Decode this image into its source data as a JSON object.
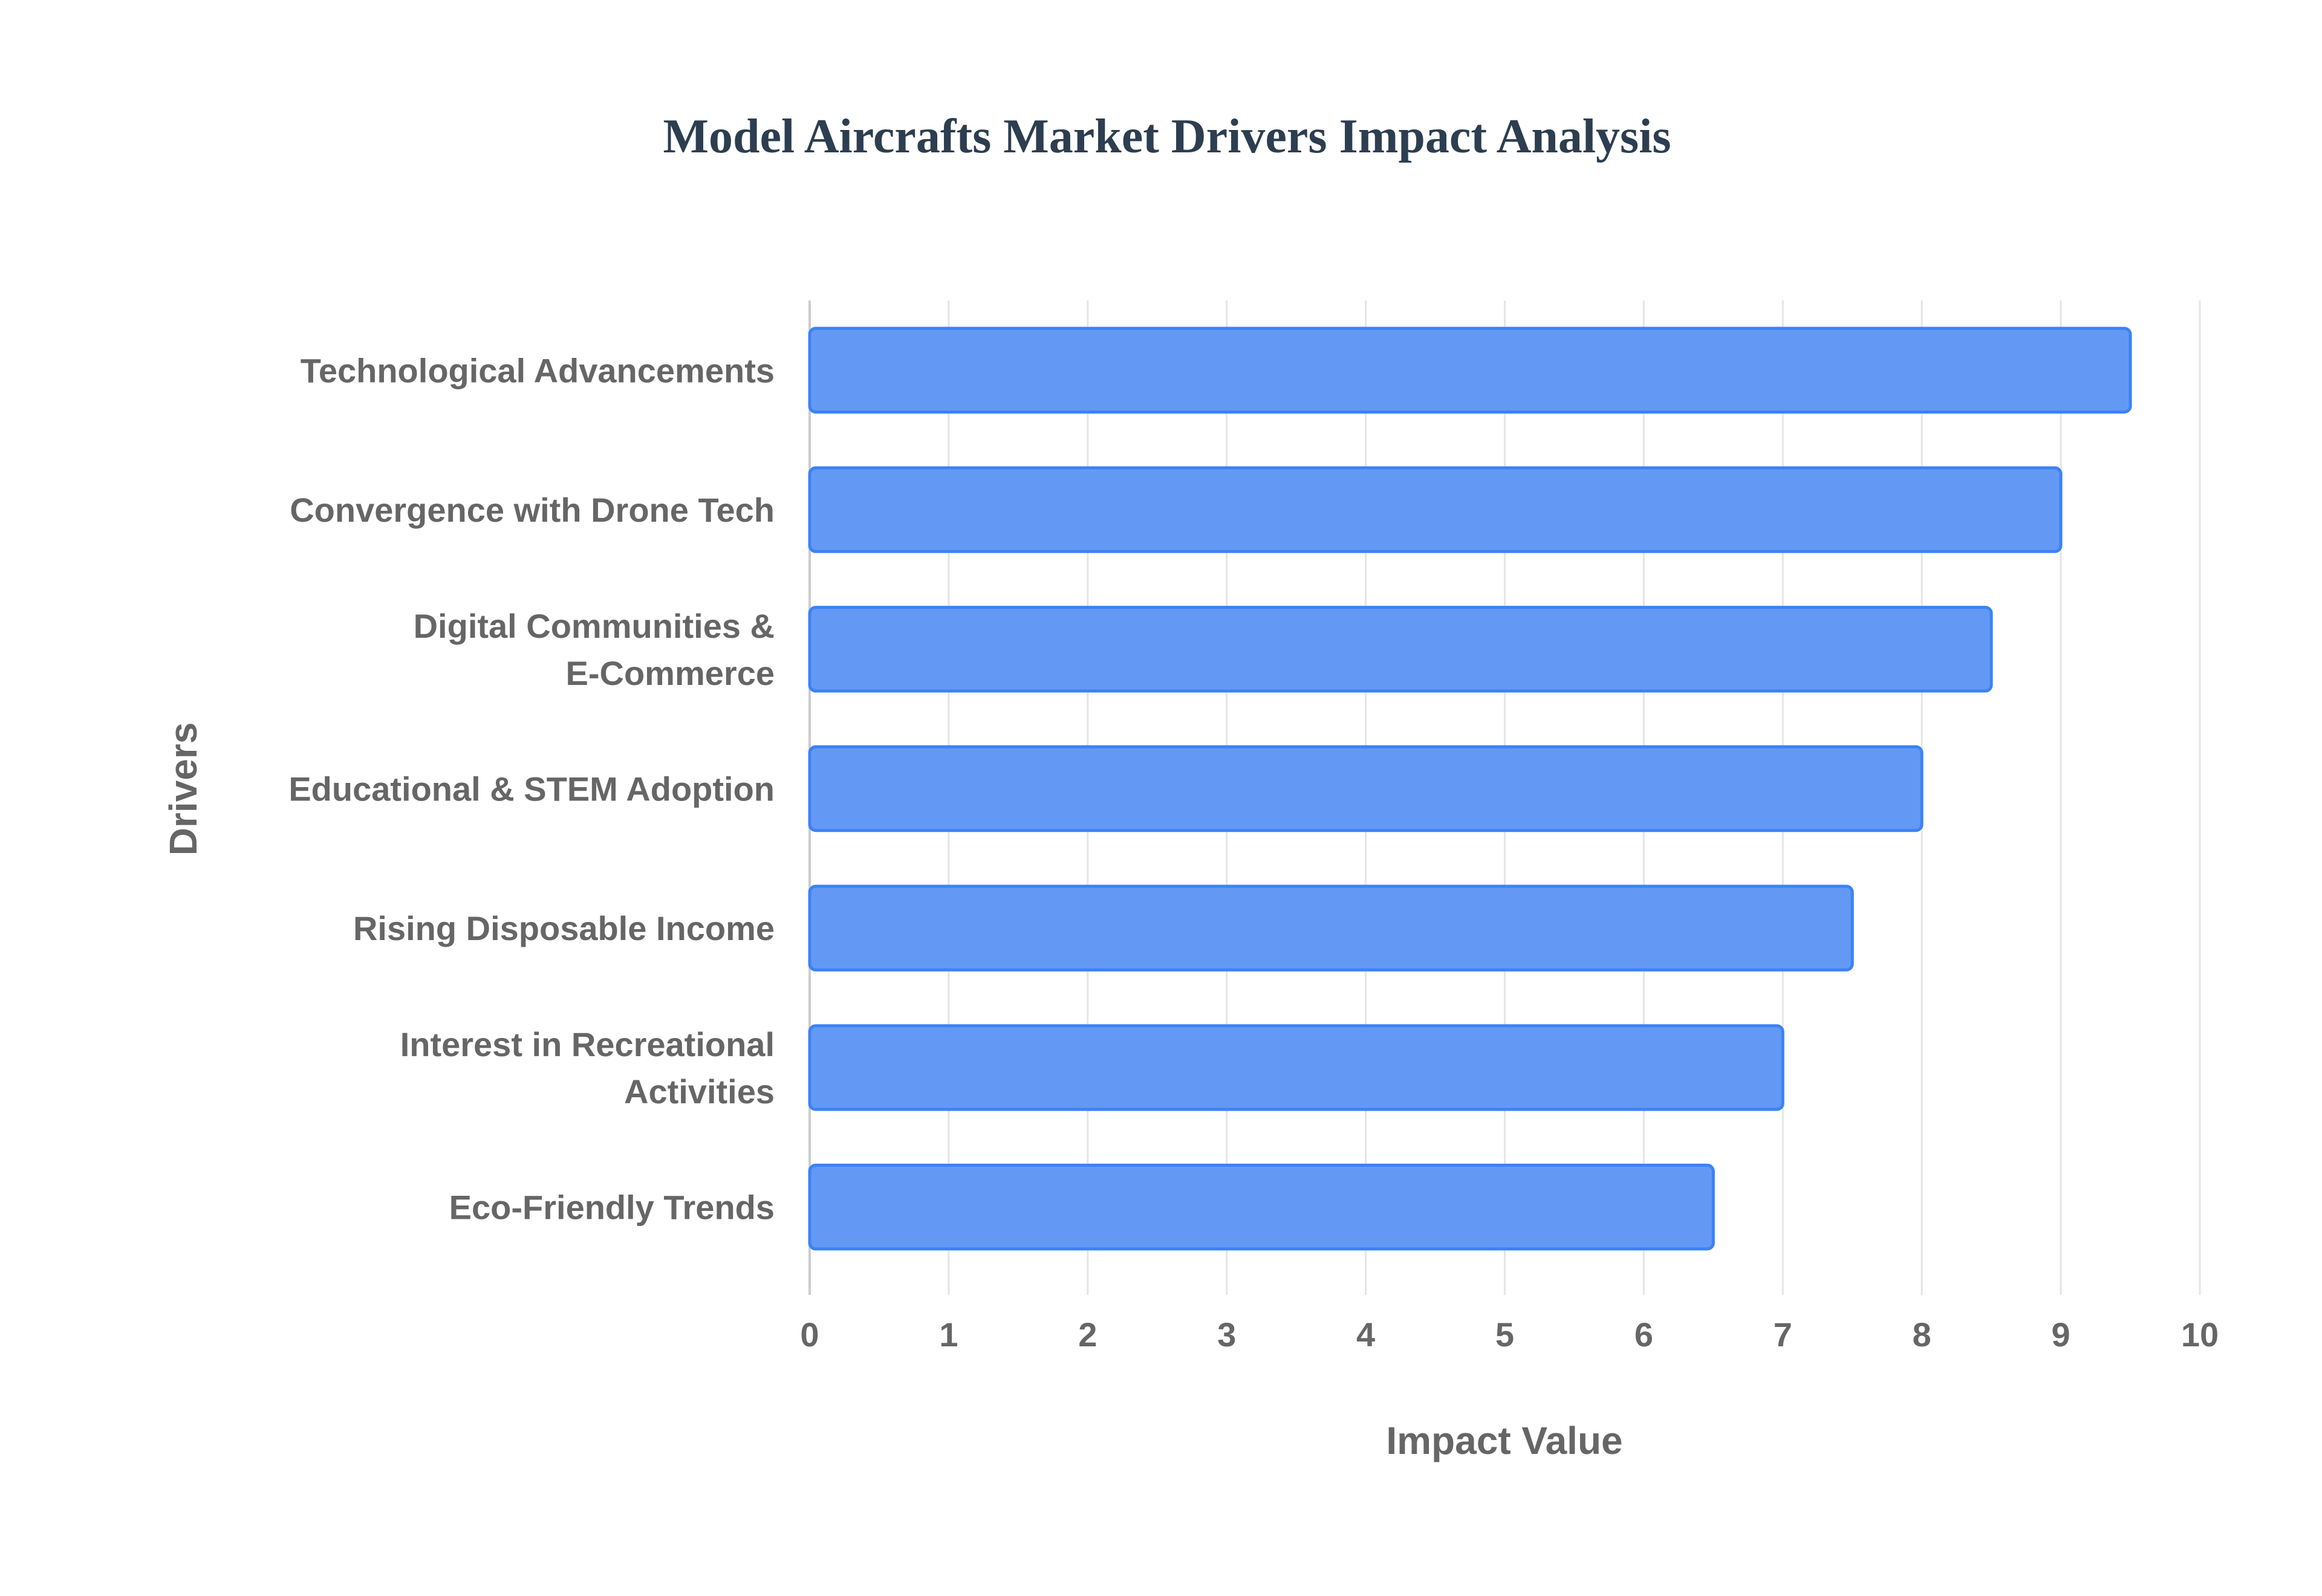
{
  "chart_data": {
    "type": "bar",
    "orientation": "horizontal",
    "title": "Model Aircrafts Market Drivers Impact Analysis",
    "xlabel": "Impact Value",
    "ylabel": "Drivers",
    "xlim": [
      0,
      10
    ],
    "xticks": [
      "0",
      "1",
      "2",
      "3",
      "4",
      "5",
      "6",
      "7",
      "8",
      "9",
      "10"
    ],
    "grid": true,
    "legend": "none",
    "categories": [
      [
        "Technological Advancements"
      ],
      [
        "Convergence with Drone Tech"
      ],
      [
        "Digital Communities &",
        "E-Commerce"
      ],
      [
        "Educational & STEM Adoption"
      ],
      [
        "Rising Disposable Income"
      ],
      [
        "Interest in Recreational",
        "Activities"
      ],
      [
        "Eco-Friendly Trends"
      ]
    ],
    "values": [
      9.5,
      9,
      8.5,
      8,
      7.5,
      7,
      6.5
    ],
    "colors": {
      "fill": "#6399f5",
      "border": "#3b82f6",
      "grid": "#e5e5e5",
      "axis": "#cccccc"
    }
  }
}
